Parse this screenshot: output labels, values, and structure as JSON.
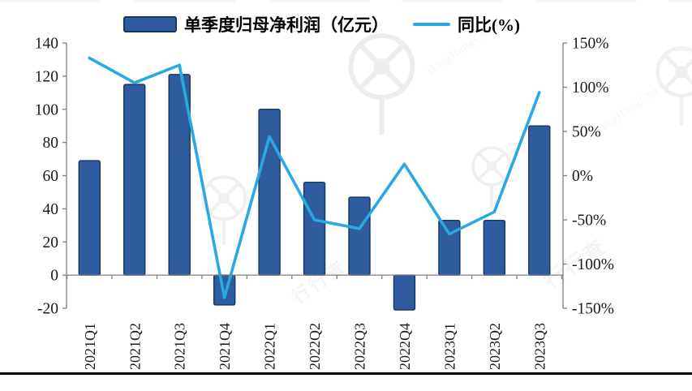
{
  "watermark": {
    "text": "行行查",
    "subtext": "HangHangCha"
  },
  "chart_data": {
    "type": "bar+line combo",
    "categories": [
      "2021Q1",
      "2021Q2",
      "2021Q3",
      "2021Q4",
      "2022Q1",
      "2022Q2",
      "2022Q3",
      "2022Q4",
      "2023Q1",
      "2023Q2",
      "2023Q3"
    ],
    "series": [
      {
        "name": "单季度归母净利润（亿元）",
        "type": "bar",
        "axis": "left",
        "color": "#2E5C9E",
        "border_color": "#17375E",
        "values": [
          69,
          115,
          121,
          -18,
          100,
          56,
          47,
          -21,
          33,
          33,
          90
        ]
      },
      {
        "name": "同比(%)",
        "type": "line",
        "axis": "right",
        "color": "#27AAE1",
        "values": [
          133,
          105,
          125,
          -138,
          44,
          -50,
          -60,
          13,
          -66,
          -41,
          94
        ]
      }
    ],
    "left_axis": {
      "min": -20,
      "max": 140,
      "step": 20,
      "tick_labels": [
        "140",
        "120",
        "100",
        "80",
        "60",
        "40",
        "20",
        "0",
        "-20"
      ]
    },
    "right_axis": {
      "min": -150,
      "max": 150,
      "step": 50,
      "tick_labels": [
        "150%",
        "100%",
        "50%",
        "0%",
        "-50%",
        "-100%",
        "-150%"
      ]
    },
    "axis_color": "#7F7F7F",
    "text_color": "#1A1A1A",
    "grid": "none",
    "legend_position": "top"
  }
}
